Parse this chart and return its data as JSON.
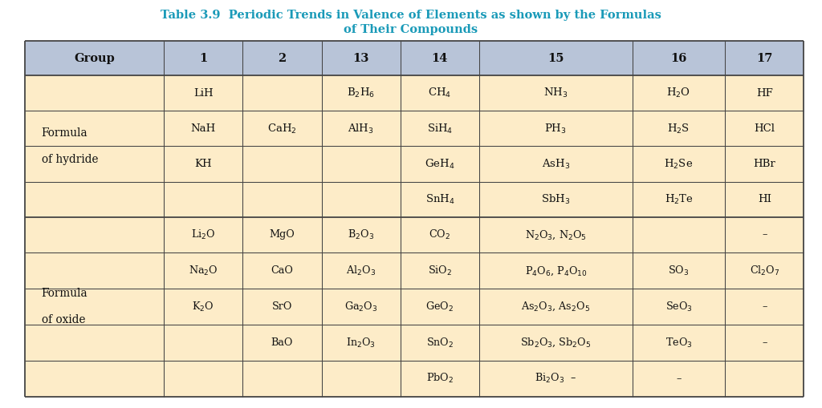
{
  "title_line1": "Table 3.9  Periodic Trends in Valence of Elements as shown by the Formulas",
  "title_line2": "of Their Compounds",
  "title_color": "#1a9ab8",
  "header_bg": "#b8c4d8",
  "cell_bg": "#fdecc8",
  "border_color": "#444444",
  "columns": [
    "Group",
    "1",
    "2",
    "13",
    "14",
    "15",
    "16",
    "17"
  ],
  "col_widths_norm": [
    1.5,
    0.85,
    0.85,
    0.85,
    0.85,
    1.65,
    1.0,
    0.85
  ],
  "hydride_rows": [
    [
      "LiH",
      "",
      "B$_2$H$_6$",
      "CH$_4$",
      "NH$_3$",
      "H$_2$O",
      "HF"
    ],
    [
      "NaH",
      "CaH$_2$",
      "AlH$_3$",
      "SiH$_4$",
      "PH$_3$",
      "H$_2$S",
      "HCl"
    ],
    [
      "KH",
      "",
      "",
      "GeH$_4$",
      "AsH$_3$",
      "H$_2$Se",
      "HBr"
    ],
    [
      "",
      "",
      "",
      "SnH$_4$",
      "SbH$_3$",
      "H$_2$Te",
      "HI"
    ]
  ],
  "oxide_rows": [
    [
      "Li$_2$O",
      "MgO",
      "B$_2$O$_3$",
      "CO$_2$",
      "N$_2$O$_3$, N$_2$O$_5$",
      "",
      "–"
    ],
    [
      "Na$_2$O",
      "CaO",
      "Al$_2$O$_3$",
      "SiO$_2$",
      "P$_4$O$_6$, P$_4$O$_{10}$",
      "SO$_3$",
      "Cl$_2$O$_7$"
    ],
    [
      "K$_2$O",
      "SrO",
      "Ga$_2$O$_3$",
      "GeO$_2$",
      "As$_2$O$_3$, As$_2$O$_5$",
      "SeO$_3$",
      "–"
    ],
    [
      "",
      "BaO",
      "In$_2$O$_3$",
      "SnO$_2$",
      "Sb$_2$O$_3$, Sb$_2$O$_5$",
      "TeO$_3$",
      "–"
    ],
    [
      "",
      "",
      "",
      "PbO$_2$",
      "Bi$_2$O$_3$  –",
      "–",
      ""
    ]
  ]
}
